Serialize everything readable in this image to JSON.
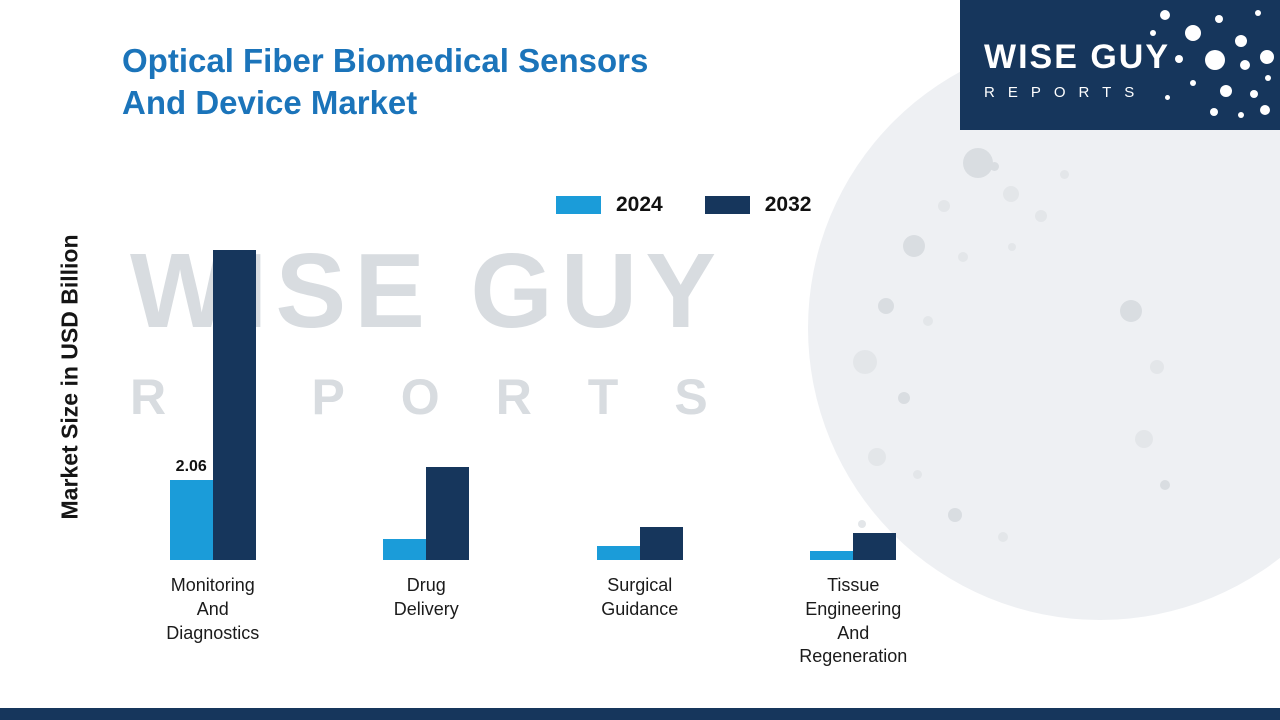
{
  "header": {
    "title_line1": "Optical Fiber Biomedical Sensors",
    "title_line2": "And Device Market"
  },
  "logo": {
    "brand": "WISE GUY",
    "sub": "REPORTS"
  },
  "watermark": {
    "line1": "WISE GUY",
    "line2": "REPORTS"
  },
  "chart_data": {
    "type": "bar",
    "title": "Optical Fiber Biomedical Sensors And Device Market",
    "ylabel": "Market Size in USD Billion",
    "categories": [
      "Monitoring And Diagnostics",
      "Drug Delivery",
      "Surgical Guidance",
      "Tissue Engineering And Regeneration"
    ],
    "display_labels": [
      "Monitoring\nAnd\nDiagnostics",
      "Drug\nDelivery",
      "Surgical\nGuidance",
      "Tissue\nEngineering\nAnd\nRegeneration"
    ],
    "series": [
      {
        "name": "2024",
        "color": "#1b9cd9",
        "values": [
          2.06,
          0.55,
          0.35,
          0.22
        ]
      },
      {
        "name": "2032",
        "color": "#16365c",
        "values": [
          8.0,
          2.4,
          0.85,
          0.7
        ]
      }
    ],
    "annotations": [
      {
        "category_index": 0,
        "series_index": 0,
        "text": "2.06"
      }
    ],
    "ylim": [
      0,
      8
    ],
    "legend_position": "top",
    "grid": false
  },
  "colors": {
    "title_blue": "#1b74ba",
    "bar_2024": "#1b9cd9",
    "bar_2032": "#16365c",
    "navy_block": "#16365c",
    "watermark_gray": "#d8dce0",
    "circle_gray": "#eef0f3"
  }
}
